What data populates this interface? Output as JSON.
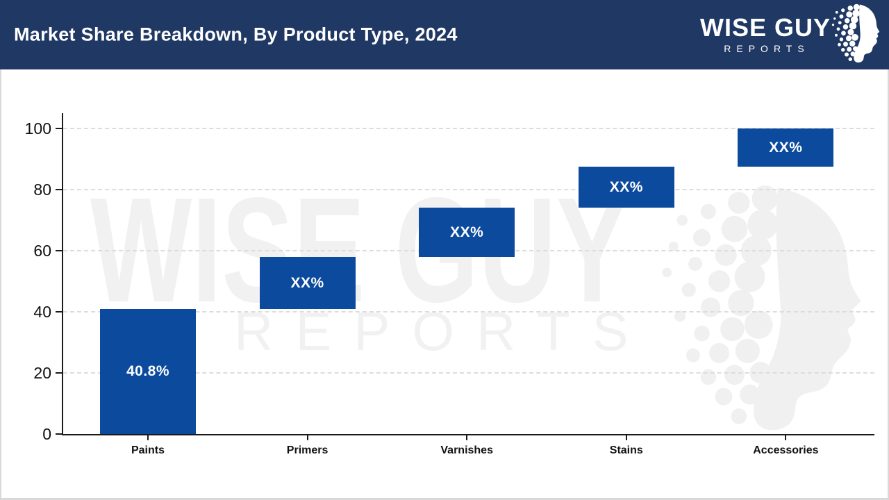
{
  "header": {
    "title": "Market Share Breakdown, By Product Type, 2024",
    "logo": {
      "name": "WISE GUY",
      "subtitle": "REPORTS"
    }
  },
  "watermark": {
    "line1": "WISE GUY",
    "line2": "REPORTS"
  },
  "colors": {
    "header_bg": "#1f3864",
    "bar": "#0c4a9d",
    "grid": "#dcdcdc",
    "axis": "#1a1a1a",
    "watermark": "#f1f1f1",
    "bar_label": "#ffffff"
  },
  "chart_data": {
    "type": "bar",
    "subtype": "waterfall",
    "title": "Market Share Breakdown, By Product Type, 2024",
    "categories": [
      "Paints",
      "Primers",
      "Varnishes",
      "Stains",
      "Accessories"
    ],
    "segments": [
      {
        "category": "Paints",
        "start": 0,
        "end": 40.8,
        "label": "40.8%"
      },
      {
        "category": "Primers",
        "start": 40.8,
        "end": 58,
        "label": "XX%"
      },
      {
        "category": "Varnishes",
        "start": 58,
        "end": 74,
        "label": "XX%"
      },
      {
        "category": "Stains",
        "start": 74,
        "end": 87.5,
        "label": "XX%"
      },
      {
        "category": "Accessories",
        "start": 87.5,
        "end": 100,
        "label": "XX%"
      }
    ],
    "xlabel": "",
    "ylabel": "",
    "yticks": [
      0,
      20,
      40,
      60,
      80,
      100
    ],
    "ylim": [
      0,
      105
    ],
    "grid": "horizontal-dashed",
    "legend": "none"
  }
}
